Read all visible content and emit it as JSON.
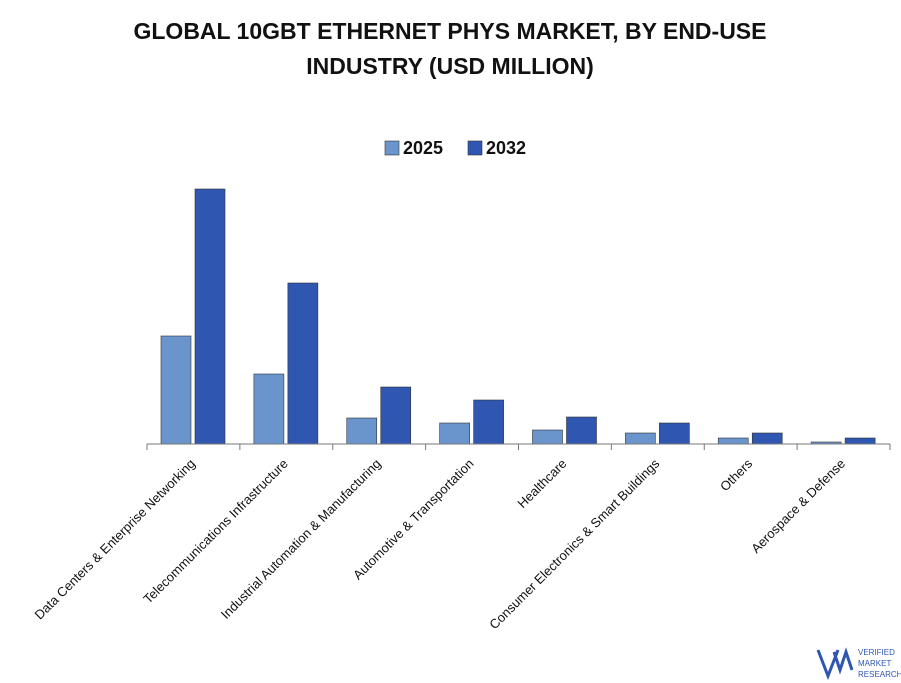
{
  "chart_data": {
    "type": "bar",
    "title": "GLOBAL 10GBT ETHERNET PHYS MARKET, BY END-USE INDUSTRY (USD MILLION)",
    "categories": [
      "Data Centers & Enterprise Networking",
      "Telecommunications Infrastructure",
      "Industrial Automation & Manufacturing",
      "Automotive & Transportation",
      "Healthcare",
      "Consumer Electronics & Smart Buildings",
      "Others",
      "Aerospace & Defense"
    ],
    "series": [
      {
        "name": "2025",
        "color": "#6a95cc",
        "values": [
          108,
          70,
          26,
          21,
          14,
          11,
          6,
          2
        ]
      },
      {
        "name": "2032",
        "color": "#2f56b0",
        "values": [
          255,
          161,
          57,
          44,
          27,
          21,
          11,
          6
        ]
      }
    ],
    "legend": "top"
  },
  "logo": {
    "lines": [
      "VERIFIED",
      "MARKET",
      "RESEARCH"
    ]
  }
}
